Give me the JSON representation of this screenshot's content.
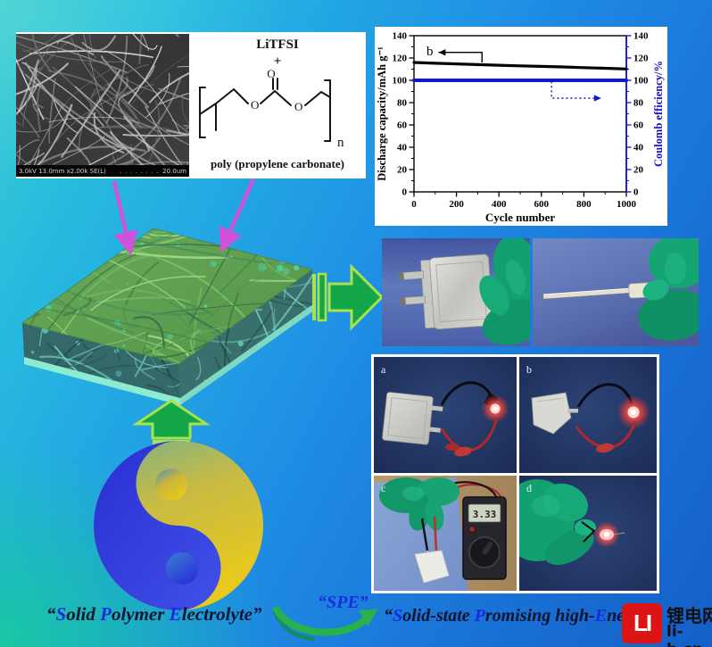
{
  "sem": {
    "caption_left": "3.0kV 13.0mm x2.00k SE(L)",
    "caption_right": "20.0um"
  },
  "chem": {
    "salt": "LiTFSI",
    "plus": "+",
    "atoms": [
      "O",
      "O",
      "O"
    ],
    "repeat_unit": "n",
    "polymer_name": "poly (propylene carbonate)"
  },
  "chart_data": {
    "type": "line",
    "panel_label": "b",
    "xlabel": "Cycle number",
    "ylabel_left": "Discharge capacity/mAh g⁻¹",
    "ylabel_right": "Coulomb efficiency/%",
    "xlim": [
      0,
      1000
    ],
    "ylim": [
      0,
      140
    ],
    "x_major_ticks": [
      0,
      200,
      400,
      600,
      800,
      1000
    ],
    "y_major_ticks": [
      0,
      20,
      40,
      60,
      80,
      100,
      120,
      140
    ],
    "x_major_step": 200,
    "x_minor_step": 100,
    "y_major_step": 20,
    "y_minor_step": 10,
    "axis_right_color": "#1515cc",
    "grid": false,
    "series": [
      {
        "name": "Discharge capacity",
        "color": "#000000",
        "x": [
          0,
          100,
          200,
          300,
          400,
          500,
          600,
          700,
          800,
          900,
          1000
        ],
        "y": [
          116,
          115.3,
          114.7,
          114.1,
          113.5,
          113.0,
          112.5,
          112.0,
          111.4,
          110.8,
          110.2
        ]
      },
      {
        "name": "Coulomb efficiency",
        "color": "#1515cc",
        "x": [
          0,
          1000
        ],
        "y": [
          100,
          100
        ]
      }
    ],
    "annotations": [
      {
        "type": "arrow",
        "color": "#000000",
        "style": "solid",
        "points": [
          [
            320,
            116
          ],
          [
            320,
            125
          ],
          [
            115,
            125
          ]
        ]
      },
      {
        "type": "arrow",
        "color": "#1515cc",
        "style": "dotted",
        "points": [
          [
            648,
            99
          ],
          [
            648,
            84
          ],
          [
            882,
            84
          ]
        ]
      }
    ]
  },
  "photos": {
    "panel_labels": [
      "a",
      "b",
      "c",
      "d"
    ],
    "multimeter_reading": "3.33"
  },
  "captions": {
    "left": [
      {
        "t": "“"
      },
      {
        "t": "S",
        "a": true
      },
      {
        "t": "olid "
      },
      {
        "t": "P",
        "a": true
      },
      {
        "t": "olymer "
      },
      {
        "t": "E",
        "a": true
      },
      {
        "t": "lectrolyte”"
      }
    ],
    "spe": "“SPE”",
    "right": [
      {
        "t": "“"
      },
      {
        "t": "S",
        "a": true
      },
      {
        "t": "olid-state "
      },
      {
        "t": "P",
        "a": true
      },
      {
        "t": "romising high-"
      },
      {
        "t": "E",
        "a": true
      },
      {
        "t": "nergy”"
      }
    ]
  },
  "logo": {
    "mark": "LI",
    "site_cn": "锂电网",
    "site_en": "li-b.cn"
  },
  "colors": {
    "accent_blue": "#1a2be0",
    "arrow_green": "#14a74a",
    "arrow_border": "#a9e24c",
    "magenta_arrow": "#cf52d8",
    "logo_red": "#dd1414"
  }
}
